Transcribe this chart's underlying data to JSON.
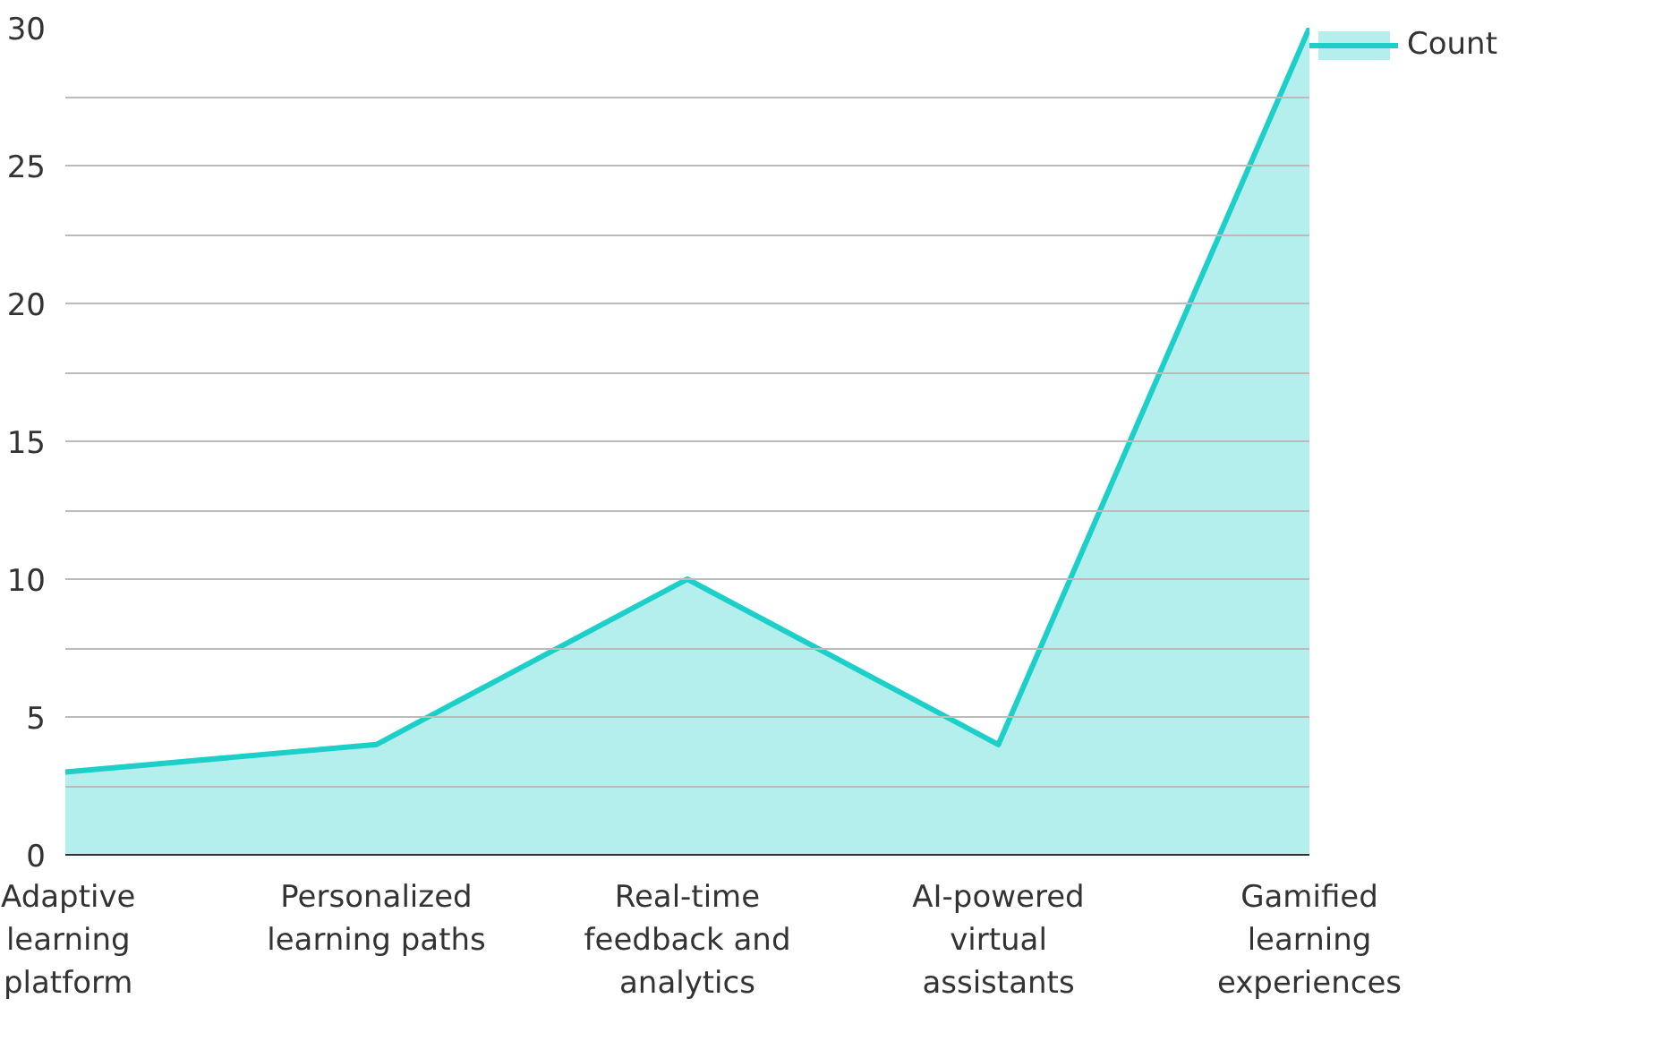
{
  "chart_data": {
    "type": "area",
    "categories": [
      "Adaptive learning platform",
      "Personalized learning paths",
      "Real-time feedback and analytics",
      "AI-powered virtual assistants",
      "Gamified learning experiences"
    ],
    "series": [
      {
        "name": "Count",
        "color": "#1ccfc9",
        "values": [
          3,
          4,
          10,
          4,
          30
        ]
      }
    ],
    "ylim": [
      0,
      30
    ],
    "yticks": [
      0,
      {
        "value": 2.5,
        "label": null
      },
      5,
      {
        "value": 7.5,
        "label": null
      },
      10,
      {
        "value": 12.5,
        "label": null
      },
      15,
      {
        "value": 17.5,
        "label": null
      },
      20,
      {
        "value": 22.5,
        "label": null
      },
      25,
      {
        "value": 27.5,
        "label": null
      },
      30
    ],
    "grid": "y",
    "legend": "top right"
  }
}
